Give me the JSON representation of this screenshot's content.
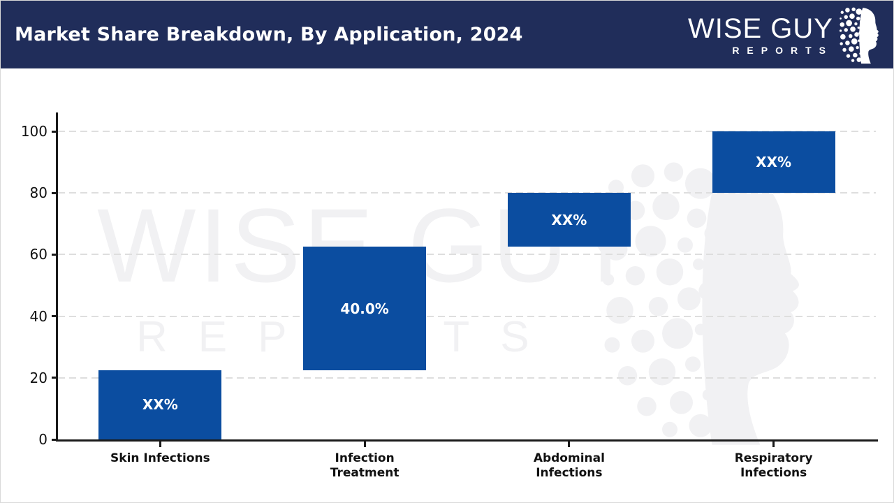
{
  "header": {
    "title": "Market Share Breakdown, By Application, 2024",
    "logo": {
      "wordmark": "WISE GUY",
      "subtext": "REPORTS"
    }
  },
  "watermark": {
    "wordmark": "WISE GUY",
    "subtext": "REPORTS"
  },
  "chart_data": {
    "type": "bar",
    "subtype": "waterfall",
    "title": "Market Share Breakdown, By Application, 2024",
    "categories": [
      "Skin Infections",
      "Infection Treatment",
      "Abdominal Infections",
      "Respiratory Infections"
    ],
    "category_display": [
      "Skin Infections",
      "Infection\nTreatment",
      "Abdominal\nInfections",
      "Respiratory\nInfections"
    ],
    "segments": [
      {
        "category": "Skin Infections",
        "start": 0,
        "end": 22.5,
        "label": "XX%"
      },
      {
        "category": "Infection Treatment",
        "start": 22.5,
        "end": 62.5,
        "label": "40.0%"
      },
      {
        "category": "Abdominal Infections",
        "start": 62.5,
        "end": 80,
        "label": "XX%"
      },
      {
        "category": "Respiratory Infections",
        "start": 80,
        "end": 100,
        "label": "XX%"
      }
    ],
    "values": [
      22.5,
      40.0,
      17.5,
      20.0
    ],
    "bar_labels": [
      "XX%",
      "40.0%",
      "XX%",
      "XX%"
    ],
    "xlabel": "",
    "ylabel": "",
    "yticks": [
      0,
      20,
      40,
      60,
      80,
      100
    ],
    "ylim": [
      0,
      105
    ],
    "grid": "horizontal-dashed",
    "legend": "none",
    "bar_color": "#0b4da0",
    "bar_label_color": "#ffffff",
    "axis_color": "#1a1a1a",
    "gridline_color": "#dedede"
  },
  "colors": {
    "header_bg": "#202d5a",
    "page_bg": "#ffffff",
    "watermark": "#f1f1f3",
    "page_border": "#d9d9d9"
  }
}
